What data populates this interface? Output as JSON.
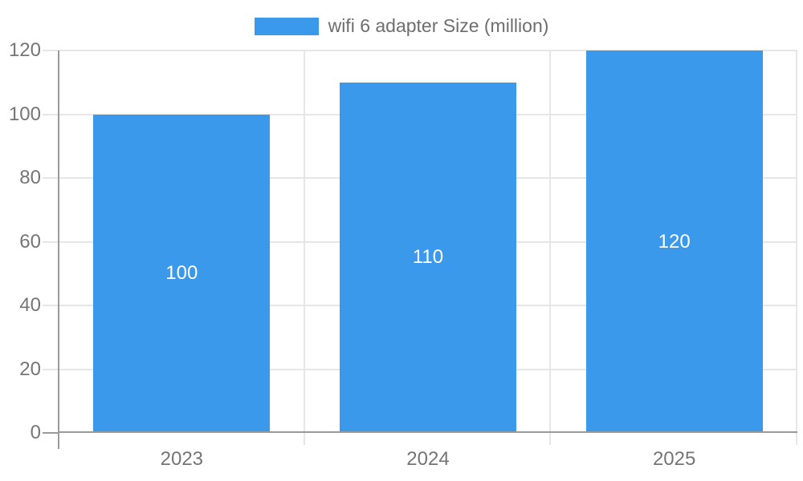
{
  "chart_data": {
    "type": "bar",
    "title": "wifi 6 adapter Size (million)",
    "categories": [
      "2023",
      "2024",
      "2025"
    ],
    "series": [
      {
        "name": "wifi 6 adapter Size (million)",
        "values": [
          100,
          110,
          120
        ]
      }
    ],
    "data_labels": [
      "100",
      "110",
      "120"
    ],
    "xlabel": "",
    "ylabel": "",
    "ylim": [
      0,
      120
    ],
    "yticks": [
      0,
      20,
      40,
      60,
      80,
      100,
      120
    ],
    "grid": true,
    "legend_position": "top-center",
    "colors": {
      "bar": "#3B99EC",
      "grid_line": "#e6e6e6",
      "axis_line": "#9a9a9a",
      "axis_label_text": "#757575",
      "legend_text": "#6e6e6e",
      "bar_label_text": "#ffffff",
      "background": "#ffffff"
    }
  }
}
